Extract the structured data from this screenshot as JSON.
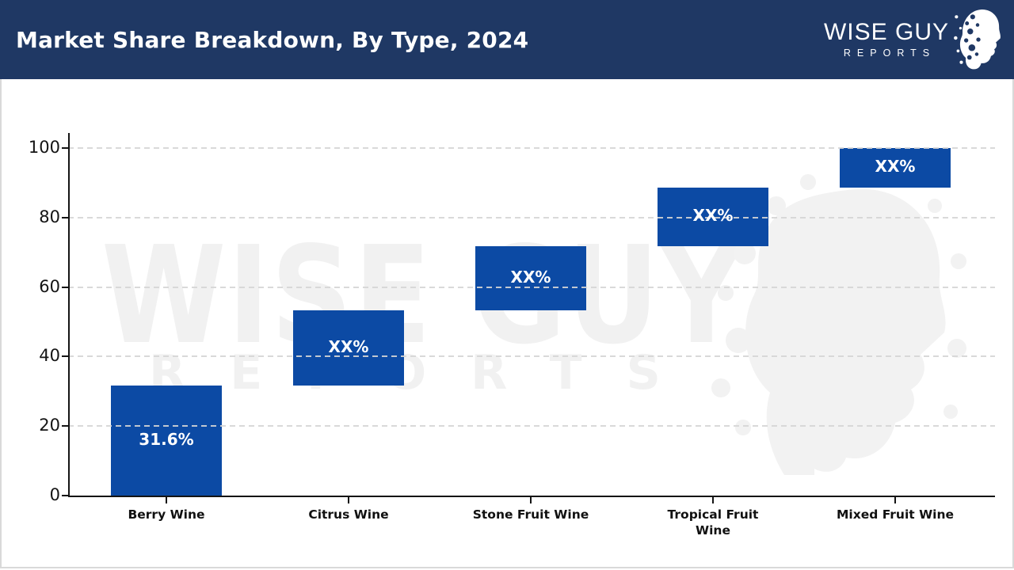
{
  "header": {
    "title": "Market Share Breakdown, By Type, 2024",
    "background_color": "#1f3864",
    "logo": {
      "line1": "WISE GUY",
      "line2": "REPORTS",
      "head_icon": "dotted-face-profile"
    }
  },
  "watermark": {
    "line1": "WISE GUY",
    "line2": "REPORTS",
    "color": "#f1f1f1"
  },
  "chart_data": {
    "type": "bar",
    "subtype": "floating-waterfall",
    "title": "Market Share Breakdown, By Type, 2024",
    "categories": [
      "Berry Wine",
      "Citrus Wine",
      "Stone Fruit Wine",
      "Tropical Fruit\nWine",
      "Mixed Fruit Wine"
    ],
    "segments": [
      {
        "category": "Berry Wine",
        "start": 0,
        "end": 31.6,
        "size": 31.6,
        "label": "31.6%"
      },
      {
        "category": "Citrus Wine",
        "start": 31.6,
        "end": 53.2,
        "size": 21.6,
        "label": "XX%"
      },
      {
        "category": "Stone Fruit Wine",
        "start": 53.2,
        "end": 71.7,
        "size": 18.5,
        "label": "XX%"
      },
      {
        "category": "Tropical Fruit Wine",
        "start": 71.7,
        "end": 88.6,
        "size": 16.9,
        "label": "XX%"
      },
      {
        "category": "Mixed Fruit Wine",
        "start": 88.6,
        "end": 100,
        "size": 11.4,
        "label": "XX%"
      }
    ],
    "yticks": [
      0,
      20,
      40,
      60,
      80,
      100
    ],
    "ylim": [
      0,
      104
    ],
    "xlabel": "",
    "ylabel": "",
    "bar_color": "#0c4aa4",
    "bar_label_color": "#ffffff",
    "grid": "horizontal-dashed",
    "grid_color": "#d5d5d5",
    "legend": "none"
  }
}
